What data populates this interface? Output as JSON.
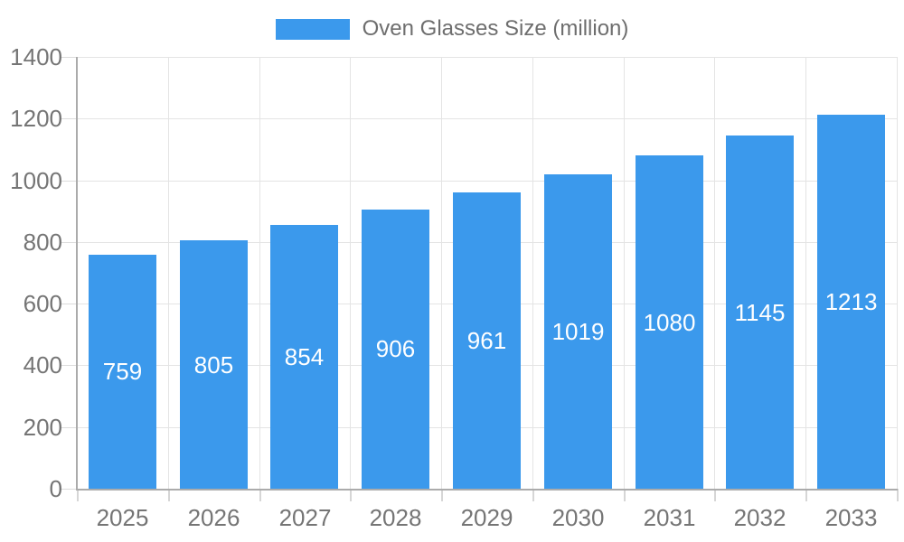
{
  "chart_data": {
    "type": "bar",
    "title": "Oven Glasses Size (million)",
    "legend": {
      "label": "Oven Glasses Size (million)",
      "position": "top"
    },
    "categories": [
      "2025",
      "2026",
      "2027",
      "2028",
      "2029",
      "2030",
      "2031",
      "2032",
      "2033"
    ],
    "series": [
      {
        "name": "Oven Glasses Size (million)",
        "values": [
          759,
          805,
          854,
          906,
          961,
          1019,
          1080,
          1145,
          1213
        ]
      }
    ],
    "value_labels_shown": true,
    "xlabel": "",
    "ylabel": "",
    "ylim": [
      0,
      1400
    ],
    "yticks": [
      0,
      200,
      400,
      600,
      800,
      1000,
      1200,
      1400
    ],
    "grid": true,
    "colors": {
      "bar": "#3B99EC",
      "value_label": "#FFFFFF",
      "axis_text": "#757575",
      "legend_text": "#6E6E6E",
      "gridline": "#E4E4E4",
      "axis_line": "#ABABAB",
      "tick": "#D6D6D6",
      "background": "#FFFFFF"
    }
  }
}
